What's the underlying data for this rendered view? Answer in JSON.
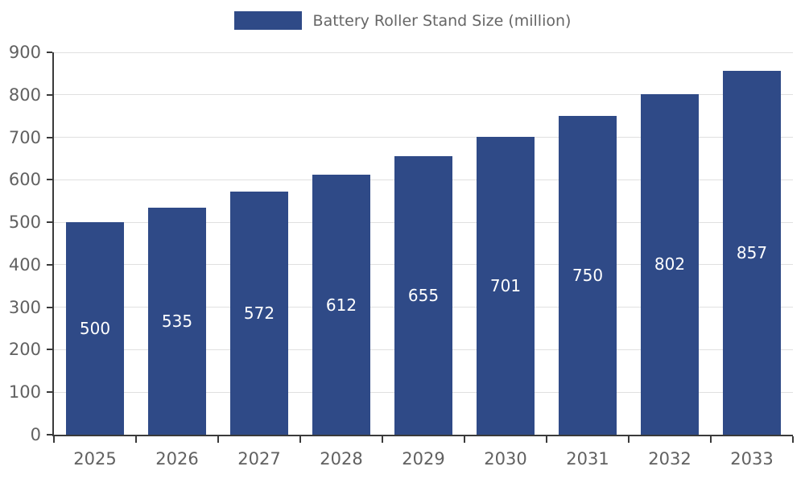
{
  "chart_data": {
    "type": "bar",
    "title": "Battery Roller Stand Size (million)",
    "legend": "Battery Roller Stand Size (million)",
    "categories": [
      "2025",
      "2026",
      "2027",
      "2028",
      "2029",
      "2030",
      "2031",
      "2032",
      "2033"
    ],
    "values": [
      500,
      535,
      572,
      612,
      655,
      701,
      750,
      802,
      857
    ],
    "xlabel": "",
    "ylabel": "",
    "ylim": [
      0,
      900
    ],
    "y_tick_step": 100,
    "grid": true,
    "legend_position": "top-center",
    "colors": {
      "bar": "#2F4A87",
      "grid": "#e0e0e0",
      "axis": "#3a3a3a",
      "tick_label": "#616161",
      "value_label": "#ffffff",
      "legend_text": "#666666"
    }
  }
}
